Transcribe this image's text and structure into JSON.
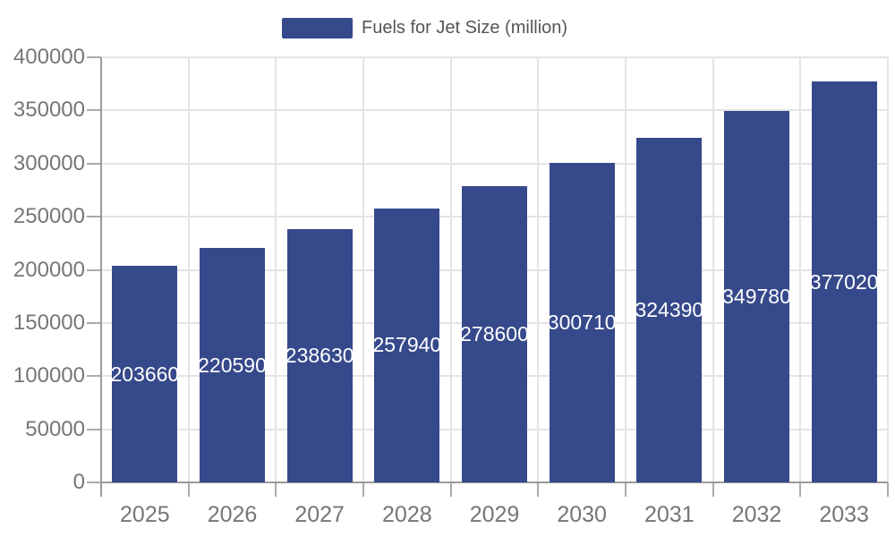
{
  "legend": {
    "label": "Fuels for Jet Size (million)",
    "swatch_color": "#36498b"
  },
  "chart_data": {
    "type": "bar",
    "title": "Fuels for Jet Size (million)",
    "series_name": "Fuels for Jet Size (million)",
    "categories": [
      "2025",
      "2026",
      "2027",
      "2028",
      "2029",
      "2030",
      "2031",
      "2032",
      "2033"
    ],
    "values": [
      203660,
      220590,
      238630,
      257940,
      278600,
      300710,
      324390,
      349780,
      377020
    ],
    "value_labels": [
      "203660",
      "220590",
      "238630",
      "257940",
      "278600",
      "300710",
      "324390",
      "349780",
      "377020"
    ],
    "xlabel": "",
    "ylabel": "",
    "ylim": [
      0,
      400000
    ],
    "y_ticks": [
      0,
      50000,
      100000,
      150000,
      200000,
      250000,
      300000,
      350000,
      400000
    ],
    "y_tick_labels": [
      "0",
      "50000",
      "100000",
      "150000",
      "200000",
      "250000",
      "300000",
      "350000",
      "400000"
    ],
    "grid": true,
    "legend_position": "top-center",
    "bar_color": "#36498b",
    "value_label_color": "#ffffff",
    "axis_color": "#9a9a9a",
    "grid_color": "#e4e4e6",
    "tick_color": "#ababab",
    "label_color": "#767676"
  }
}
